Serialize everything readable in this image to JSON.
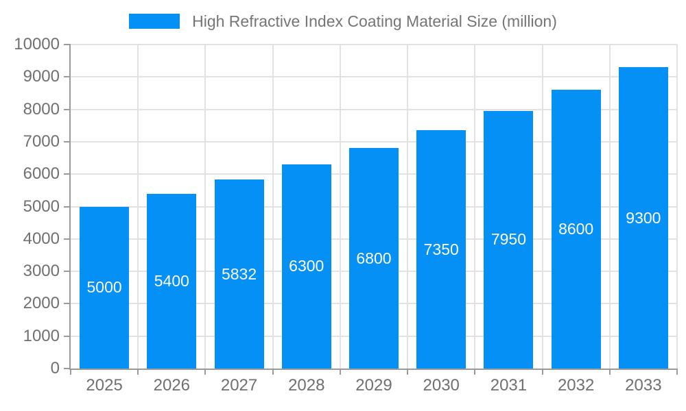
{
  "chart_data": {
    "type": "bar",
    "title": "High Refractive Index Coating Material Size (million)",
    "categories": [
      "2025",
      "2026",
      "2027",
      "2028",
      "2029",
      "2030",
      "2031",
      "2032",
      "2033"
    ],
    "values": [
      5000,
      5400,
      5832,
      6300,
      6800,
      7350,
      7950,
      8600,
      9300
    ],
    "xlabel": "",
    "ylabel": "",
    "ylim": [
      0,
      10000
    ],
    "ytick_step": 1000,
    "y_tick_labels": [
      "0",
      "1000",
      "2000",
      "3000",
      "4000",
      "5000",
      "6000",
      "7000",
      "8000",
      "9000",
      "10000"
    ],
    "grid": true,
    "legend_position": "top",
    "colors": {
      "bar": "#0590f5",
      "bar_value_label": "#ffffff",
      "axis_line": "#9a9a9a",
      "gridline": "#e2e2e2",
      "tick_label": "#707070",
      "legend_text": "#757575",
      "background": "#ffffff"
    }
  }
}
